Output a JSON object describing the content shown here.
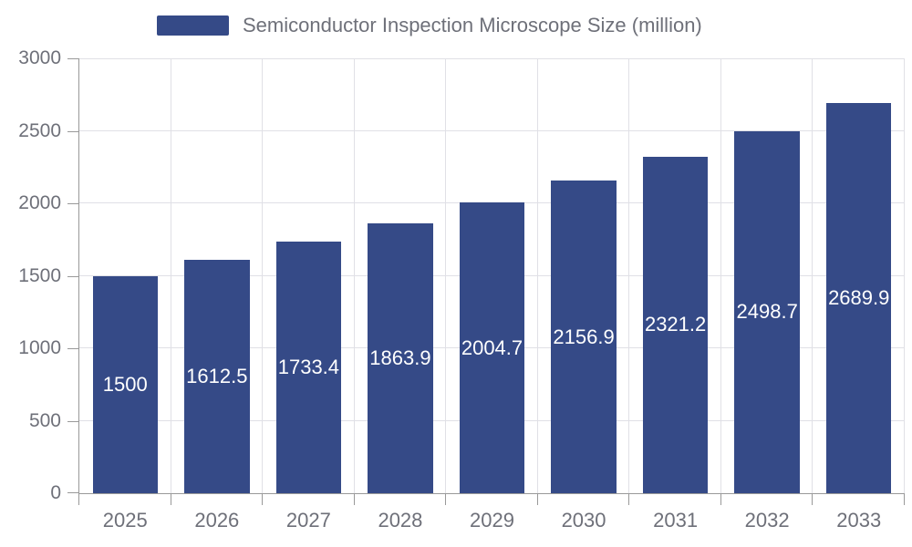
{
  "legend": {
    "label": "Semiconductor Inspection Microscope Size (million)"
  },
  "colors": {
    "bar": "#354A87",
    "legend_text": "#6E7079",
    "axis_text": "#6E7079",
    "axis_line": "#999999",
    "grid_line": "#E0E0E6",
    "bar_value_text": "#FFFFFF",
    "background": "#FFFFFF"
  },
  "chart_data": {
    "type": "bar",
    "title": "Semiconductor Inspection Microscope Size (million)",
    "series_name": "Semiconductor Inspection Microscope Size (million)",
    "categories": [
      "2025",
      "2026",
      "2027",
      "2028",
      "2029",
      "2030",
      "2031",
      "2032",
      "2033"
    ],
    "values": [
      1500,
      1612.5,
      1733.4,
      1863.9,
      2004.7,
      2156.9,
      2321.2,
      2498.7,
      2689.9
    ],
    "xlabel": "",
    "ylabel": "",
    "ylim": [
      0,
      3000
    ],
    "yticks": [
      0,
      500,
      1000,
      1500,
      2000,
      2500,
      3000
    ],
    "grid": true,
    "legend_position": "top",
    "value_label_position": "inside-center",
    "bar_width_ratio": 0.71
  }
}
